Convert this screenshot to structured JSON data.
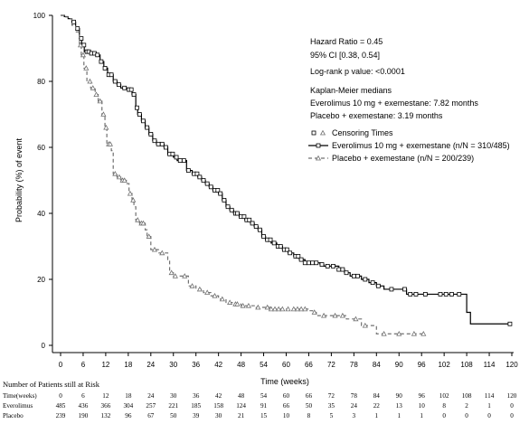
{
  "chart_data": {
    "type": "line",
    "subtype": "kaplan-meier",
    "title": "",
    "xlabel": "Time (weeks)",
    "ylabel": "Probability (%) of event",
    "xlim": [
      0,
      120
    ],
    "ylim": [
      0,
      100
    ],
    "x_ticks": [
      0,
      6,
      12,
      18,
      24,
      30,
      36,
      42,
      48,
      54,
      60,
      66,
      72,
      78,
      84,
      90,
      96,
      102,
      108,
      114,
      120
    ],
    "y_ticks": [
      0,
      20,
      40,
      60,
      80,
      100
    ],
    "grid": false,
    "legend_position": "top-right",
    "annotations": [
      "Hazard Ratio = 0.45",
      "95% CI [0.38, 0.54]",
      "Log-rank p value: <0.0001",
      "Kaplan-Meier medians",
      "Everolimus 10 mg + exemestane: 7.82 months",
      "Placebo + exemestane: 3.19 months"
    ],
    "legend": [
      {
        "label": "Censoring Times",
        "marker": "square-triangle",
        "line": "none"
      },
      {
        "label": "Everolimus 10 mg + exemestane (n/N = 310/485)",
        "marker": "square",
        "line": "solid"
      },
      {
        "label": "Placebo + exemestane (n/N = 200/239)",
        "marker": "triangle",
        "line": "dashed"
      }
    ],
    "series": [
      {
        "name": "Everolimus 10 mg + exemestane (n/N = 310/485)",
        "style": "solid",
        "color": "#000000",
        "steps": [
          [
            0,
            100
          ],
          [
            1,
            99.6
          ],
          [
            2,
            99
          ],
          [
            3,
            98
          ],
          [
            4,
            96
          ],
          [
            5,
            93
          ],
          [
            5.6,
            91
          ],
          [
            6.3,
            89
          ],
          [
            8,
            88.5
          ],
          [
            9.5,
            88
          ],
          [
            10.5,
            86
          ],
          [
            11.5,
            84
          ],
          [
            12.5,
            82
          ],
          [
            14,
            80
          ],
          [
            15,
            79
          ],
          [
            16,
            78
          ],
          [
            18,
            77.5
          ],
          [
            19,
            76
          ],
          [
            20,
            72
          ],
          [
            20.5,
            70
          ],
          [
            21.5,
            68
          ],
          [
            22.5,
            66
          ],
          [
            23.5,
            64
          ],
          [
            24.5,
            62
          ],
          [
            25.5,
            61
          ],
          [
            27.5,
            60
          ],
          [
            28.5,
            58
          ],
          [
            30,
            57
          ],
          [
            31,
            56
          ],
          [
            32.5,
            56
          ],
          [
            33.5,
            53
          ],
          [
            35,
            52
          ],
          [
            36.5,
            51
          ],
          [
            37.5,
            50
          ],
          [
            38.5,
            49
          ],
          [
            39.5,
            48
          ],
          [
            40.5,
            47
          ],
          [
            42,
            46
          ],
          [
            43,
            44
          ],
          [
            44,
            42
          ],
          [
            45,
            41
          ],
          [
            46,
            40
          ],
          [
            47.5,
            39
          ],
          [
            49,
            38
          ],
          [
            50.5,
            37
          ],
          [
            51.5,
            36
          ],
          [
            52.5,
            35
          ],
          [
            53.5,
            33
          ],
          [
            54.5,
            32
          ],
          [
            56,
            31
          ],
          [
            57.5,
            30
          ],
          [
            59,
            29
          ],
          [
            60.5,
            28
          ],
          [
            62,
            27
          ],
          [
            63.5,
            26
          ],
          [
            65,
            25
          ],
          [
            68,
            25
          ],
          [
            69,
            24.5
          ],
          [
            70,
            24
          ],
          [
            73,
            24
          ],
          [
            74,
            23
          ],
          [
            75.5,
            22
          ],
          [
            77,
            21
          ],
          [
            80,
            20
          ],
          [
            82,
            19
          ],
          [
            84,
            18
          ],
          [
            86,
            17
          ],
          [
            92,
            15.5
          ],
          [
            96,
            15.5
          ],
          [
            100,
            15.5
          ],
          [
            105,
            15.5
          ],
          [
            108,
            10
          ],
          [
            109,
            6.5
          ],
          [
            120,
            6.5
          ]
        ],
        "censor_times": [
          3.5,
          4.5,
          5.5,
          6.2,
          7,
          7.5,
          8.2,
          9,
          9.8,
          10.8,
          11.8,
          12.8,
          13.5,
          14.5,
          15.5,
          17,
          18.2,
          18.8,
          19.5,
          20.3,
          21,
          22,
          23,
          24,
          25,
          26,
          27,
          28,
          29,
          29.8,
          30.8,
          31.8,
          32.8,
          34,
          35.5,
          36.3,
          37,
          38,
          39,
          40,
          41,
          41.8,
          42.5,
          43.5,
          44.5,
          45.5,
          46.5,
          47,
          48,
          48.8,
          49.5,
          50.2,
          51,
          52,
          53,
          54,
          55,
          55.8,
          56.8,
          57.8,
          58.5,
          59.5,
          60.2,
          61,
          62.5,
          63.2,
          64,
          65,
          66,
          67,
          68,
          69.5,
          71,
          72.5,
          74,
          75,
          76,
          78,
          79,
          81,
          83,
          84.5,
          88,
          91.5,
          93,
          94.5,
          97,
          101,
          102.5,
          104,
          106,
          119.5
        ]
      },
      {
        "name": "Placebo + exemestane (n/N = 200/239)",
        "style": "dashed",
        "color": "#707070",
        "steps": [
          [
            0,
            100
          ],
          [
            1,
            99.5
          ],
          [
            2,
            99
          ],
          [
            3,
            97
          ],
          [
            4,
            95
          ],
          [
            5,
            91
          ],
          [
            5.5,
            88
          ],
          [
            6.2,
            84
          ],
          [
            7,
            80
          ],
          [
            8,
            78
          ],
          [
            9.2,
            76
          ],
          [
            10,
            74
          ],
          [
            11,
            70
          ],
          [
            11.8,
            66
          ],
          [
            12.3,
            61
          ],
          [
            13.5,
            59
          ],
          [
            14,
            52
          ],
          [
            15,
            51
          ],
          [
            16,
            50
          ],
          [
            17.5,
            49
          ],
          [
            18.2,
            46
          ],
          [
            19,
            44
          ],
          [
            19.5,
            42
          ],
          [
            20,
            38
          ],
          [
            21,
            37
          ],
          [
            22.5,
            35
          ],
          [
            23,
            33
          ],
          [
            24,
            29
          ],
          [
            26,
            28
          ],
          [
            28,
            28
          ],
          [
            28.5,
            26
          ],
          [
            29,
            22
          ],
          [
            30,
            21
          ],
          [
            32,
            21
          ],
          [
            34,
            18
          ],
          [
            36,
            17
          ],
          [
            38,
            16
          ],
          [
            40,
            15
          ],
          [
            42,
            14
          ],
          [
            44,
            13
          ],
          [
            46,
            12.5
          ],
          [
            48,
            12
          ],
          [
            52,
            11.5
          ],
          [
            56,
            11
          ],
          [
            60,
            11
          ],
          [
            66,
            10.5
          ],
          [
            67,
            10
          ],
          [
            68,
            9
          ],
          [
            72,
            9
          ],
          [
            76,
            8
          ],
          [
            80,
            6
          ],
          [
            84,
            3.5
          ],
          [
            88,
            3.5
          ],
          [
            97,
            3.5
          ]
        ],
        "censor_times": [
          5.3,
          6,
          6.8,
          7.8,
          8.6,
          9.5,
          10.5,
          11.4,
          12.1,
          12.8,
          13.2,
          14.5,
          15.6,
          16.5,
          17,
          18.5,
          19.3,
          20.5,
          21.5,
          22,
          23.5,
          25,
          27,
          29.5,
          30.5,
          33,
          35,
          37,
          39,
          41,
          43,
          45,
          46.5,
          47,
          48.5,
          50,
          52.5,
          55,
          56,
          57,
          58,
          59,
          60.5,
          62,
          63,
          64,
          65,
          67.5,
          70,
          73,
          75,
          78.5,
          81,
          86,
          90,
          94,
          96.5
        ]
      }
    ],
    "risk_table": {
      "title": "Number of Patients still at Risk",
      "columns": [
        "0",
        "6",
        "12",
        "18",
        "24",
        "30",
        "36",
        "42",
        "48",
        "54",
        "60",
        "66",
        "72",
        "78",
        "84",
        "90",
        "96",
        "102",
        "108",
        "114",
        "120"
      ],
      "rows": [
        {
          "label": "Time(weeks)",
          "values": [
            "0",
            "6",
            "12",
            "18",
            "24",
            "30",
            "36",
            "42",
            "48",
            "54",
            "60",
            "66",
            "72",
            "78",
            "84",
            "90",
            "96",
            "102",
            "108",
            "114",
            "120"
          ]
        },
        {
          "label": "Everolimus",
          "values": [
            "485",
            "436",
            "366",
            "304",
            "257",
            "221",
            "185",
            "158",
            "124",
            "91",
            "66",
            "50",
            "35",
            "24",
            "22",
            "13",
            "10",
            "8",
            "2",
            "1",
            "0"
          ]
        },
        {
          "label": "Placebo",
          "values": [
            "239",
            "190",
            "132",
            "96",
            "67",
            "50",
            "39",
            "30",
            "21",
            "15",
            "10",
            "8",
            "5",
            "3",
            "1",
            "1",
            "1",
            "0",
            "0",
            "0",
            "0"
          ]
        }
      ]
    }
  }
}
